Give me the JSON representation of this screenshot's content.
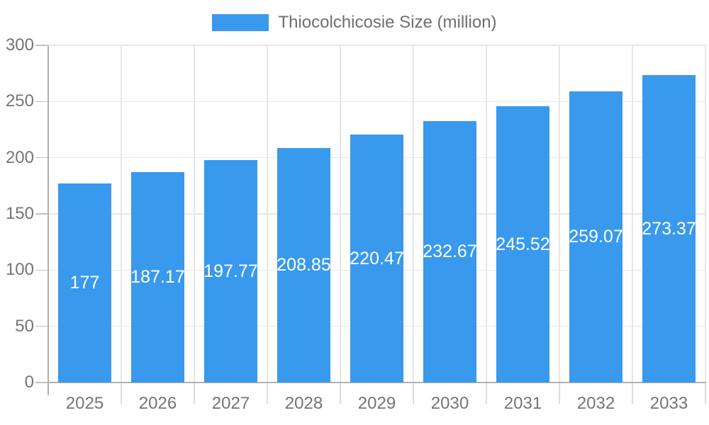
{
  "legend": {
    "label": "Thiocolchicosie Size (million)"
  },
  "chart_data": {
    "type": "bar",
    "title": "",
    "categories": [
      "2025",
      "2026",
      "2027",
      "2028",
      "2029",
      "2030",
      "2031",
      "2032",
      "2033"
    ],
    "series": [
      {
        "name": "Thiocolchicosie Size (million)",
        "color": "#3999EC",
        "values": [
          177,
          187.17,
          197.77,
          208.85,
          220.47,
          232.67,
          245.52,
          259.07,
          273.37
        ]
      }
    ],
    "value_labels": [
      "177",
      "187.17",
      "197.77",
      "208.85",
      "220.47",
      "232.67",
      "245.52",
      "259.07",
      "273.37"
    ],
    "value_label_position": "center-of-bar",
    "ylim": [
      0,
      300
    ],
    "yticks": [
      0,
      50,
      100,
      150,
      200,
      250,
      300
    ],
    "xlabel": "",
    "ylabel": "",
    "grid": "light horizontal gridlines at y ticks and vertical gridlines at category boundaries",
    "legend_position": "top-center"
  },
  "colors": {
    "bar": "#3999EC",
    "grid": "#E6E6E6",
    "axis_border": "#B0B0B0",
    "y_tick_mark": "#C2C2C2",
    "x_tick_mark": "#DDDDDD",
    "axis_text": "#757575",
    "legend_text": "#6E6E6E",
    "value_text": "#FFFFFF",
    "background": "#FFFFFF"
  }
}
